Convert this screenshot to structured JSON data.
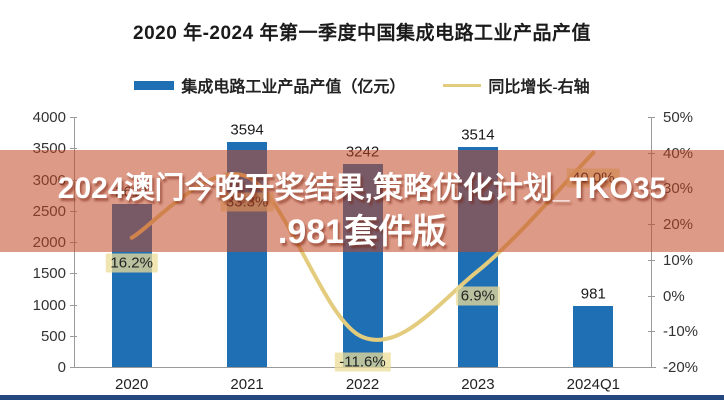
{
  "title": "2020 年-2024 年第一季度中国集成电路工业产品产值",
  "legend": {
    "items": [
      {
        "label": "集成电路工业产品产值（亿元）",
        "marker": "bar-swatch"
      },
      {
        "label": "同比增长-右轴",
        "marker": "line-swatch"
      }
    ]
  },
  "watermark": {
    "line1": "2024澳门今晚开奖结果,策略优化计划_TKO35",
    "line2": ".981套件版"
  },
  "chart_data": {
    "type": "combo",
    "categories": [
      "2020",
      "2021",
      "2022",
      "2023",
      "2024Q1"
    ],
    "series": [
      {
        "name": "集成电路工业产品产值（亿元）",
        "type": "bar",
        "axis": "left",
        "values": [
          2614,
          3594,
          3242,
          3514,
          981
        ],
        "data_labels": [
          "2614",
          "3594",
          "3242",
          "3514",
          "981"
        ]
      },
      {
        "name": "同比增长-右轴",
        "type": "line",
        "axis": "right",
        "values": [
          16.2,
          33.3,
          -11.6,
          6.9,
          40.0
        ],
        "data_labels": [
          "16.2%",
          "33.3%",
          "-11.6%",
          "6.9%",
          "40.0%"
        ]
      }
    ],
    "left_axis": {
      "ticks": [
        0,
        500,
        1000,
        1500,
        2000,
        2500,
        3000,
        3500,
        4000
      ],
      "range": [
        0,
        4000
      ]
    },
    "right_axis": {
      "ticks": [
        -20,
        -10,
        0,
        10,
        20,
        30,
        40,
        50
      ],
      "range": [
        -20,
        50
      ],
      "suffix": "%"
    },
    "grid": false,
    "legend_position": "top",
    "data_label_boxes": true
  },
  "colors": {
    "bar": "#1F6FB5",
    "line": "#E4CC7E",
    "label_box": "rgba(236,222,152,0.75)",
    "watermark_band": "rgba(193,71,37,0.55)",
    "footer": "#24477E",
    "axis": "#9a9a9a"
  }
}
